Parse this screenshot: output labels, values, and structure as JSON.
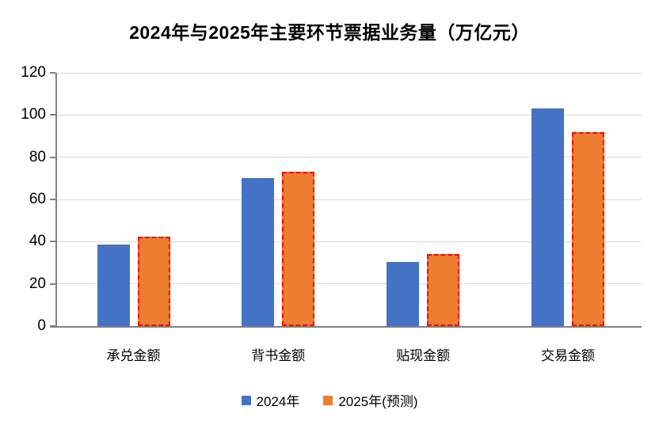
{
  "chart_data": {
    "type": "bar",
    "title": "2024年与2025年主要环节票据业务量（万亿元）",
    "categories": [
      "承兑金额",
      "背书金额",
      "贴现金额",
      "交易金额"
    ],
    "series": [
      {
        "name": "2024年",
        "values": [
          38.5,
          70,
          30.5,
          103
        ],
        "color": "#4472C4",
        "border_color": null
      },
      {
        "name": "2025年(预测)",
        "values": [
          42.5,
          73,
          34,
          92
        ],
        "color": "#ED7D31",
        "border_color": "#FF0000",
        "border_style": "dashed"
      }
    ],
    "xlabel": "",
    "ylabel": "",
    "ylim": [
      0,
      120
    ],
    "yticks": [
      0,
      20,
      40,
      60,
      80,
      100,
      120
    ],
    "grid": true,
    "gridline_color": "#D9D9D9",
    "axis_color": "#7F7F7F",
    "background_color": "#FFFFFF",
    "legend_position": "bottom"
  }
}
